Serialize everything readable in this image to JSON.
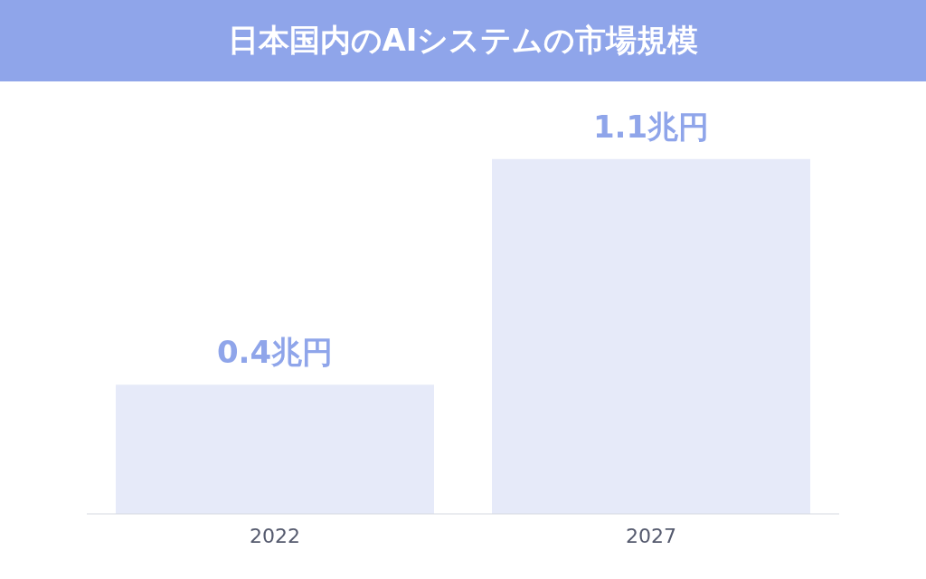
{
  "chart_data": {
    "type": "bar",
    "title": "日本国内のAIシステムの市場規模",
    "categories": [
      "2022",
      "2027"
    ],
    "values": [
      0.4,
      1.1
    ],
    "value_labels": [
      "0.4兆円",
      "1.1兆円"
    ],
    "color": "#e6eaf9"
  }
}
